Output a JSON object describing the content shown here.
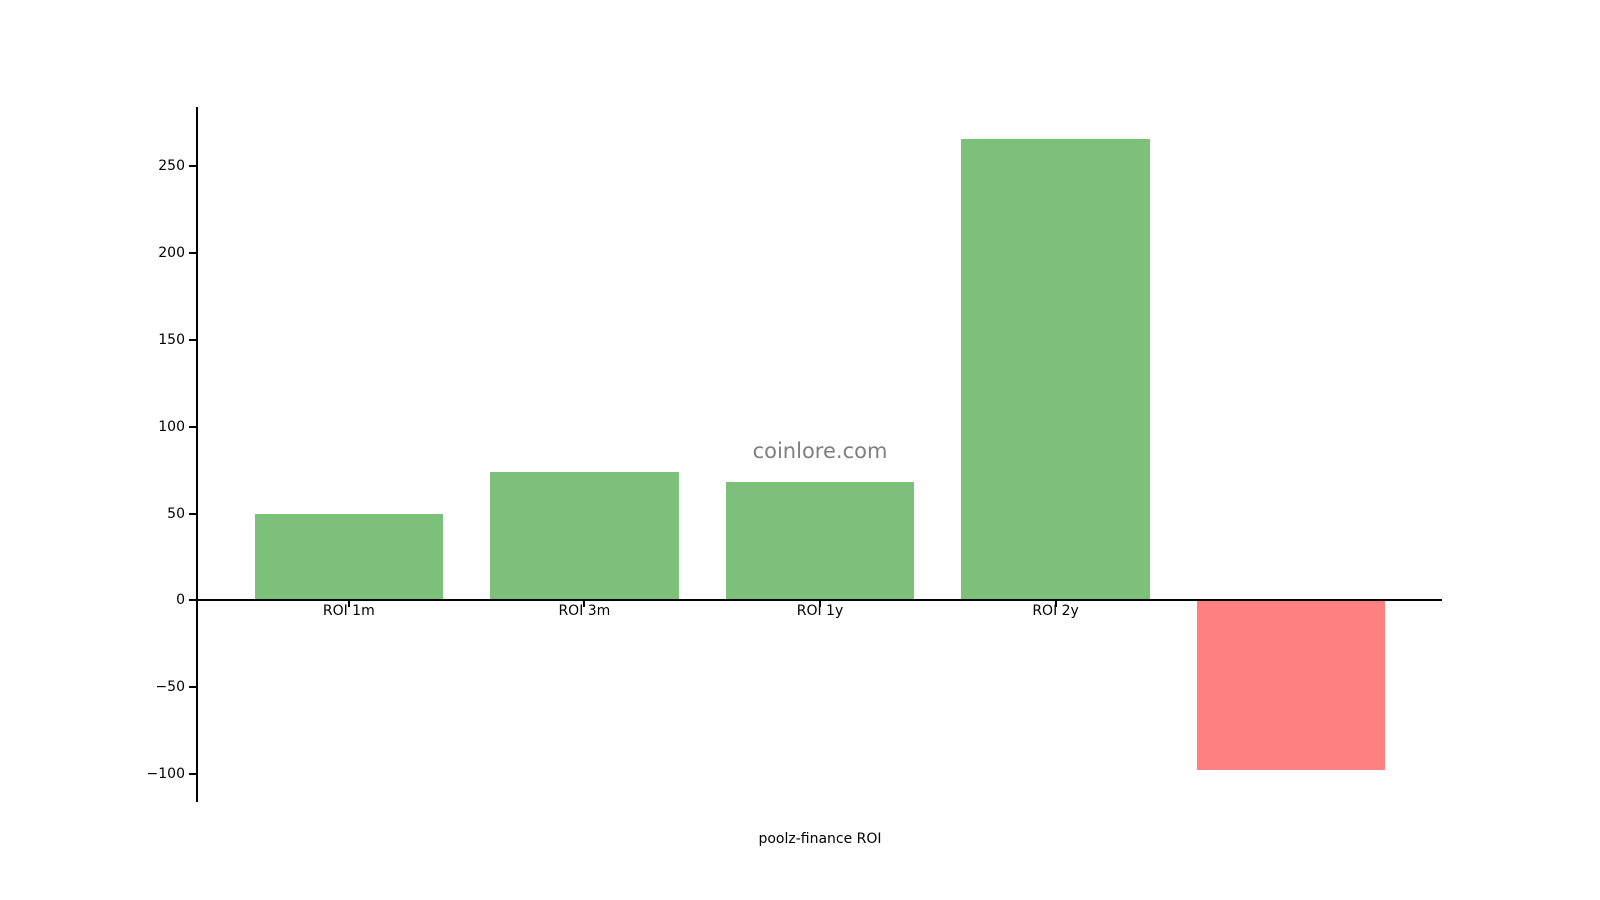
{
  "watermark": "coinlore.com",
  "chart_data": {
    "type": "bar",
    "categories": [
      "ROI 1m",
      "ROI 3m",
      "ROI 1y",
      "ROI 2y",
      ""
    ],
    "values": [
      50,
      74,
      68,
      266,
      -98
    ],
    "bar_colors": [
      "#7dc07a",
      "#7dc07a",
      "#7dc07a",
      "#7dc07a",
      "#ff8080"
    ],
    "title": "",
    "xlabel": "poolz-finance ROI",
    "ylabel": "",
    "yticks": [
      250,
      200,
      150,
      100,
      50,
      0,
      -50,
      -100
    ],
    "ylim": [
      -116.2,
      284.2
    ],
    "xlim": [
      -0.64,
      4.64
    ],
    "bar_width_fraction": 0.8,
    "grid": false,
    "legend_position": "none",
    "colors": {
      "positive": "#7dc07a",
      "negative": "#ff8080",
      "axis": "#000000",
      "tick_label": "#000000",
      "watermark_gray": "#7f7f7f",
      "background": "#ffffff"
    }
  }
}
